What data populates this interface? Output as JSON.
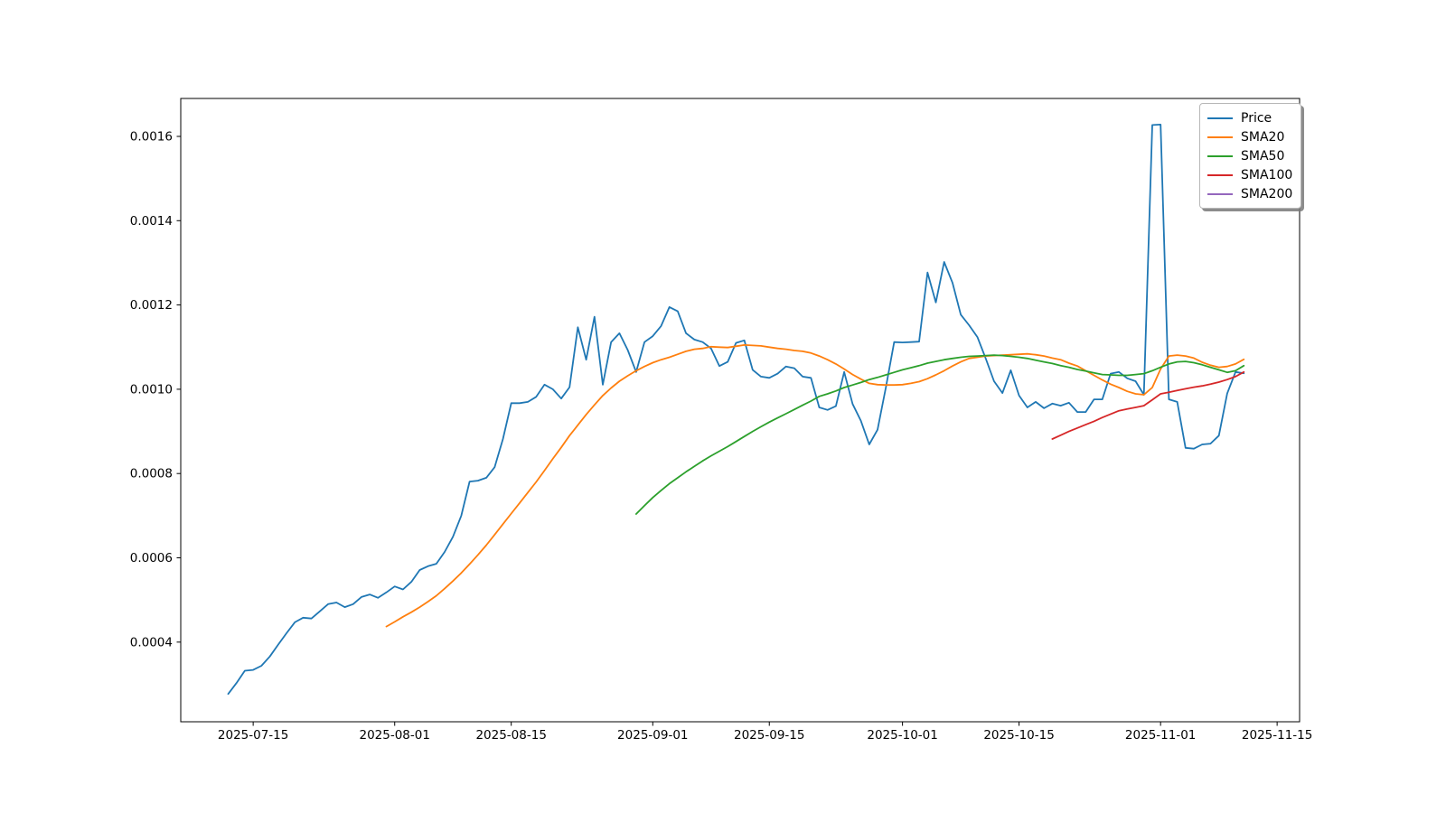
{
  "figure": {
    "background_color": "#ffffff",
    "frame_color": "#000000"
  },
  "chart_data": {
    "type": "line",
    "title": "",
    "xlabel": "",
    "ylabel": "",
    "grid": false,
    "value_unit": 0.0001,
    "x_axis": {
      "tick_labels": [
        "2025-07-15",
        "2025-08-01",
        "2025-08-15",
        "2025-09-01",
        "2025-09-15",
        "2025-10-01",
        "2025-10-15",
        "2025-11-01",
        "2025-11-15"
      ],
      "tick_days": [
        3,
        20,
        34,
        51,
        65,
        81,
        95,
        112,
        126
      ],
      "start_date": "2025-07-12",
      "xlim_days": [
        -5.7,
        128.7
      ]
    },
    "y_axis": {
      "tick_labels": [
        "0.0004",
        "0.0006",
        "0.0008",
        "0.0010",
        "0.0012",
        "0.0014",
        "0.0016"
      ],
      "tick_values": [
        4.0,
        6.0,
        8.0,
        10.0,
        12.0,
        14.0,
        16.0
      ],
      "ylim": [
        2.11,
        16.9
      ]
    },
    "legend": {
      "position": "upper right",
      "entries": [
        "Price",
        "SMA20",
        "SMA50",
        "SMA100",
        "SMA200"
      ]
    },
    "series": [
      {
        "name": "Price",
        "color": "#1f77b4",
        "start_date": "2025-07-12",
        "start_day": 0,
        "values": [
          2.77,
          3.03,
          3.32,
          3.34,
          3.44,
          3.66,
          3.94,
          4.21,
          4.47,
          4.58,
          4.56,
          4.73,
          4.9,
          4.94,
          4.83,
          4.9,
          5.07,
          5.13,
          5.05,
          5.18,
          5.32,
          5.25,
          5.43,
          5.71,
          5.8,
          5.86,
          6.14,
          6.5,
          7.0,
          7.81,
          7.83,
          7.9,
          8.15,
          8.82,
          9.67,
          9.67,
          9.7,
          9.82,
          10.11,
          10.0,
          9.78,
          10.05,
          11.47,
          10.7,
          11.72,
          10.11,
          11.12,
          11.33,
          10.93,
          10.41,
          11.12,
          11.26,
          11.5,
          11.95,
          11.85,
          11.33,
          11.18,
          11.12,
          10.97,
          10.55,
          10.65,
          11.1,
          11.16,
          10.46,
          10.3,
          10.27,
          10.37,
          10.54,
          10.5,
          10.3,
          10.27,
          9.57,
          9.51,
          9.6,
          10.41,
          9.65,
          9.25,
          8.69,
          9.04,
          10.04,
          11.12,
          11.11,
          11.12,
          11.13,
          12.77,
          12.06,
          13.02,
          12.53,
          11.77,
          11.52,
          11.24,
          10.73,
          10.19,
          9.91,
          10.45,
          9.85,
          9.57,
          9.7,
          9.55,
          9.66,
          9.61,
          9.68,
          9.46,
          9.46,
          9.76,
          9.76,
          10.37,
          10.41,
          10.26,
          10.19,
          9.87,
          16.27,
          16.28,
          9.76,
          9.7,
          8.61,
          8.59,
          8.69,
          8.71,
          8.9,
          9.9,
          10.41,
          10.38
        ]
      },
      {
        "name": "SMA20",
        "color": "#ff7f0e",
        "start_date": "2025-07-31",
        "start_day": 19,
        "values": [
          4.37,
          4.48,
          4.6,
          4.71,
          4.83,
          4.96,
          5.1,
          5.27,
          5.45,
          5.64,
          5.85,
          6.07,
          6.3,
          6.55,
          6.8,
          7.05,
          7.3,
          7.55,
          7.8,
          8.07,
          8.35,
          8.62,
          8.9,
          9.15,
          9.4,
          9.63,
          9.85,
          10.03,
          10.19,
          10.32,
          10.44,
          10.54,
          10.63,
          10.7,
          10.76,
          10.83,
          10.9,
          10.95,
          10.97,
          11.01,
          11.0,
          10.99,
          11.02,
          11.05,
          11.04,
          11.03,
          11.0,
          10.97,
          10.95,
          10.92,
          10.9,
          10.86,
          10.79,
          10.7,
          10.6,
          10.48,
          10.35,
          10.24,
          10.14,
          10.11,
          10.1,
          10.1,
          10.11,
          10.14,
          10.18,
          10.25,
          10.34,
          10.44,
          10.55,
          10.65,
          10.73,
          10.76,
          10.79,
          10.8,
          10.81,
          10.82,
          10.83,
          10.84,
          10.82,
          10.79,
          10.74,
          10.7,
          10.62,
          10.55,
          10.44,
          10.33,
          10.22,
          10.12,
          10.04,
          9.95,
          9.89,
          9.87,
          10.04,
          10.48,
          10.79,
          10.81,
          10.79,
          10.74,
          10.64,
          10.57,
          10.52,
          10.54,
          10.6,
          10.71
        ]
      },
      {
        "name": "SMA50",
        "color": "#2ca02c",
        "start_date": "2025-08-30",
        "start_day": 49,
        "values": [
          7.04,
          7.24,
          7.43,
          7.6,
          7.76,
          7.9,
          8.04,
          8.17,
          8.3,
          8.42,
          8.53,
          8.64,
          8.76,
          8.88,
          9.0,
          9.11,
          9.22,
          9.32,
          9.42,
          9.52,
          9.62,
          9.72,
          9.83,
          9.89,
          9.96,
          10.04,
          10.1,
          10.16,
          10.23,
          10.28,
          10.34,
          10.4,
          10.46,
          10.51,
          10.56,
          10.62,
          10.66,
          10.7,
          10.73,
          10.76,
          10.78,
          10.79,
          10.8,
          10.81,
          10.8,
          10.78,
          10.76,
          10.73,
          10.69,
          10.65,
          10.61,
          10.56,
          10.52,
          10.47,
          10.43,
          10.39,
          10.35,
          10.34,
          10.33,
          10.33,
          10.35,
          10.37,
          10.44,
          10.52,
          10.6,
          10.65,
          10.66,
          10.63,
          10.58,
          10.52,
          10.46,
          10.4,
          10.44,
          10.56
        ]
      },
      {
        "name": "SMA100",
        "color": "#d62728",
        "start_date": "2025-10-19",
        "start_day": 99,
        "values": [
          8.82,
          8.91,
          9.0,
          9.08,
          9.16,
          9.24,
          9.33,
          9.41,
          9.49,
          9.53,
          9.57,
          9.61,
          9.75,
          9.89,
          9.93,
          9.97,
          10.01,
          10.05,
          10.08,
          10.12,
          10.17,
          10.23,
          10.3,
          10.41
        ]
      },
      {
        "name": "SMA200",
        "color": "#9467bd",
        "start_date": "",
        "start_day": 199,
        "values": []
      }
    ]
  }
}
